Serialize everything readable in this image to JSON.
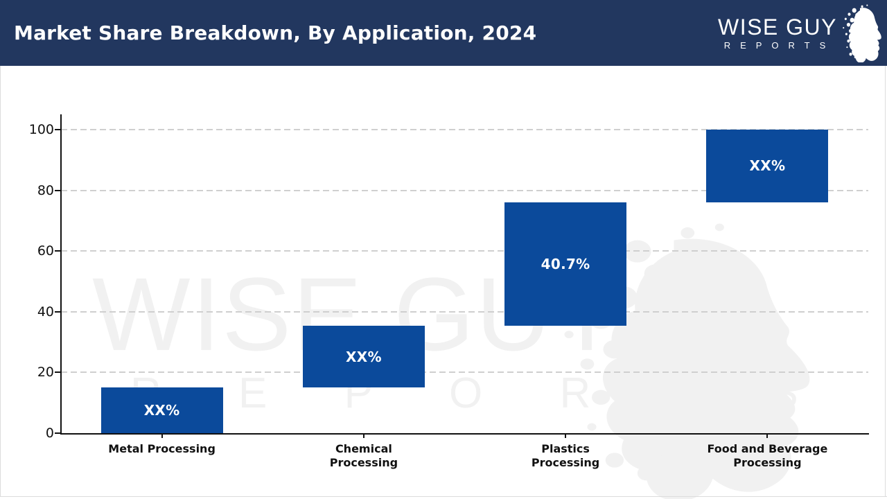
{
  "header": {
    "title": "Market Share Breakdown, By Application, 2024",
    "bg_color": "#22375f",
    "logo": {
      "line1": "WISE GUY",
      "line2": "REPORTS"
    }
  },
  "watermark": {
    "line1": "WISE GUY",
    "line2": "R E P O R T S"
  },
  "chart_data": {
    "type": "bar",
    "subtype": "waterfall",
    "title": "Market Share Breakdown, By Application, 2024",
    "categories": [
      "Metal Processing",
      "Chemical Processing",
      "Plastics Processing",
      "Food and Beverage Processing"
    ],
    "category_lines": [
      [
        "Metal Processing"
      ],
      [
        "Chemical",
        "Processing"
      ],
      [
        "Plastics",
        "Processing"
      ],
      [
        "Food and Beverage",
        "Processing"
      ]
    ],
    "segments": [
      {
        "category": "Metal Processing",
        "start": 0,
        "end": 15,
        "value": 15,
        "label": "XX%"
      },
      {
        "category": "Chemical Processing",
        "start": 15,
        "end": 35.4,
        "value": 20.4,
        "label": "XX%"
      },
      {
        "category": "Plastics Processing",
        "start": 35.4,
        "end": 76.1,
        "value": 40.7,
        "label": "40.7%"
      },
      {
        "category": "Food and Beverage Processing",
        "start": 76.1,
        "end": 100,
        "value": 23.9,
        "label": "XX%"
      }
    ],
    "xlabel": "",
    "ylabel": "",
    "yticks": [
      0,
      20,
      40,
      60,
      80,
      100
    ],
    "ylim": [
      0,
      105
    ],
    "grid": true,
    "legend": false,
    "bar_color": "#0b4a9b",
    "grid_color": "#cfcfcf",
    "axis_color": "#111111",
    "value_label_color": "#ffffff"
  }
}
